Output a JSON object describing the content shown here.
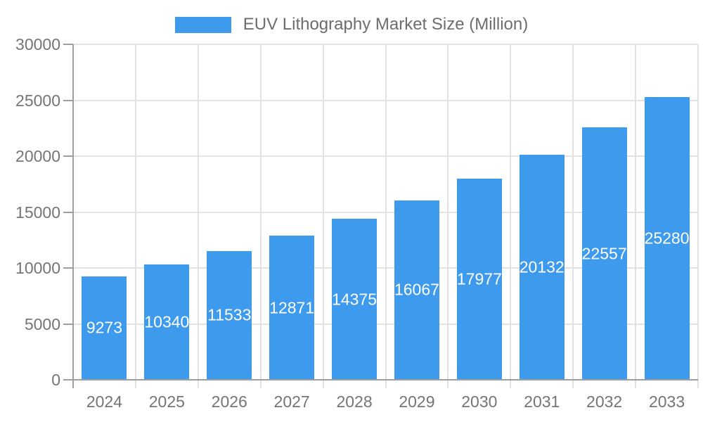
{
  "legend": {
    "label": "EUV Lithography Market Size (Million)"
  },
  "chart_data": {
    "type": "bar",
    "title": "EUV Lithography Market Size (Million)",
    "series_name": "EUV Lithography Market Size (Million)",
    "categories": [
      "2024",
      "2025",
      "2026",
      "2027",
      "2028",
      "2029",
      "2030",
      "2031",
      "2032",
      "2033"
    ],
    "values": [
      9273,
      10340,
      11533,
      12871,
      14375,
      16067,
      17977,
      20132,
      22557,
      25280
    ],
    "value_labels": [
      "9273",
      "10340",
      "11533",
      "12871",
      "14375",
      "16067",
      "17977",
      "20132",
      "22557",
      "25280"
    ],
    "xlabel": "",
    "ylabel": "",
    "ylim": [
      0,
      30000
    ],
    "yticks": [
      0,
      5000,
      10000,
      15000,
      20000,
      25000,
      30000
    ],
    "ytick_labels": [
      "0",
      "5000",
      "10000",
      "15000",
      "20000",
      "25000",
      "30000"
    ],
    "grid": true,
    "legend_position": "top",
    "colors": {
      "bar": "#3d9aec",
      "value_label": "#ffffff",
      "axis_line": "#9e9e9e",
      "grid_line": "#e2e2e2",
      "tick_label": "#757575",
      "title_text": "#6d6d6d",
      "background": "#ffffff"
    }
  }
}
